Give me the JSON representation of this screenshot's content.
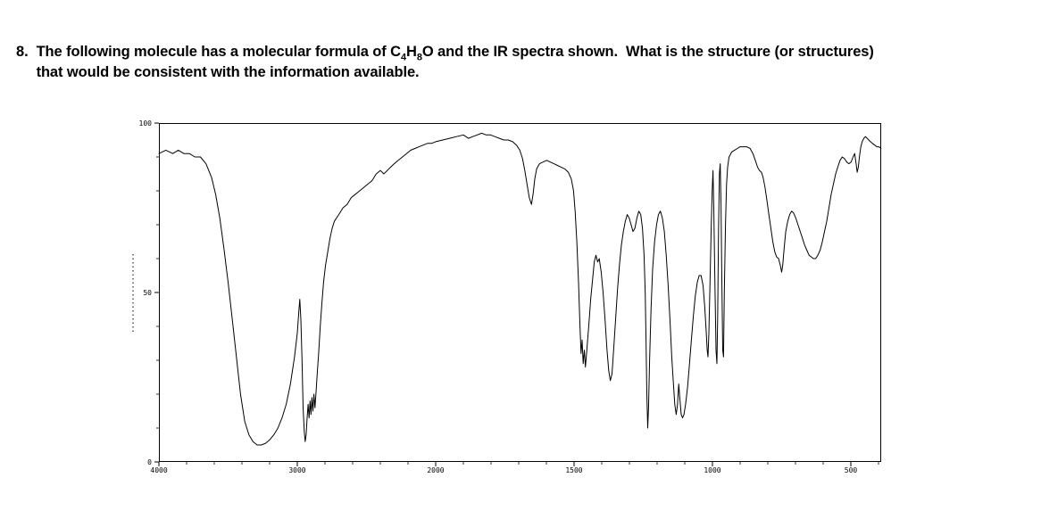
{
  "question": {
    "number": "8.",
    "line1_part1": "The following molecule has a molecular formula of C",
    "formula_sub1": "4",
    "formula_mid": "H",
    "formula_sub2": "8",
    "line1_part2": "O and the IR spectra shown.  What is the structure (or structures)",
    "line2": "that would be consistent with the information available."
  },
  "chart_data": {
    "type": "line",
    "title": "",
    "xlabel": "",
    "ylabel": "",
    "notes": "IR transmittance spectrum; x axis wavenumber 4000 to ~400 cm-1 with scale compression change at 2000 cm-1; y axis percent transmittance 0-100; broad strong band ~3350, C-H bands ~2950-2870, fingerprint bands ~1460, 1370, 1235, 1110, 1000-950, minima near 630",
    "xlim": [
      4000,
      391
    ],
    "ylim": [
      0,
      100
    ],
    "x_scale_change_at": 2000,
    "grid": false,
    "line_color": "#000000",
    "background_color": "#ffffff",
    "x_ticks_major": [
      4000,
      3000,
      2000,
      1500,
      1000,
      500
    ],
    "x_tick_labels": [
      "4000",
      "3000",
      "2000",
      "1500",
      "1000",
      "500"
    ],
    "x_ticks_minor": [
      3800,
      3600,
      3400,
      3200,
      2800,
      2600,
      2400,
      2200,
      1900,
      1800,
      1700,
      1600,
      1400,
      1300,
      1200,
      1100,
      900,
      800,
      700,
      600,
      400
    ],
    "y_ticks_major": [
      100,
      50,
      0
    ],
    "y_tick_labels": [
      "100",
      "50",
      "0"
    ],
    "y_ticks_minor": [
      10,
      20,
      30,
      40,
      60,
      70,
      80,
      90
    ],
    "points": [
      [
        4000,
        91
      ],
      [
        3950,
        92
      ],
      [
        3900,
        91
      ],
      [
        3860,
        92
      ],
      [
        3820,
        91
      ],
      [
        3780,
        91
      ],
      [
        3740,
        90
      ],
      [
        3700,
        90
      ],
      [
        3660,
        88
      ],
      [
        3620,
        84
      ],
      [
        3590,
        79
      ],
      [
        3560,
        72
      ],
      [
        3530,
        63
      ],
      [
        3500,
        53
      ],
      [
        3470,
        42
      ],
      [
        3440,
        31
      ],
      [
        3410,
        20
      ],
      [
        3380,
        12
      ],
      [
        3350,
        8
      ],
      [
        3320,
        6
      ],
      [
        3290,
        5
      ],
      [
        3260,
        5
      ],
      [
        3230,
        5.5
      ],
      [
        3200,
        6.5
      ],
      [
        3170,
        8
      ],
      [
        3140,
        10
      ],
      [
        3110,
        13
      ],
      [
        3080,
        17
      ],
      [
        3050,
        23
      ],
      [
        3020,
        31
      ],
      [
        3000,
        38
      ],
      [
        2990,
        44
      ],
      [
        2982,
        48
      ],
      [
        2974,
        42
      ],
      [
        2966,
        30
      ],
      [
        2958,
        16
      ],
      [
        2950,
        9
      ],
      [
        2943,
        6
      ],
      [
        2936,
        8
      ],
      [
        2929,
        13
      ],
      [
        2922,
        17
      ],
      [
        2915,
        13
      ],
      [
        2908,
        18
      ],
      [
        2901,
        14
      ],
      [
        2894,
        19
      ],
      [
        2887,
        15
      ],
      [
        2880,
        20
      ],
      [
        2872,
        16
      ],
      [
        2864,
        21
      ],
      [
        2856,
        26
      ],
      [
        2846,
        32
      ],
      [
        2834,
        40
      ],
      [
        2822,
        47
      ],
      [
        2810,
        53
      ],
      [
        2796,
        58
      ],
      [
        2780,
        62
      ],
      [
        2764,
        66
      ],
      [
        2748,
        69
      ],
      [
        2732,
        71
      ],
      [
        2716,
        72
      ],
      [
        2700,
        73
      ],
      [
        2670,
        75
      ],
      [
        2640,
        76
      ],
      [
        2610,
        78
      ],
      [
        2580,
        79
      ],
      [
        2550,
        80
      ],
      [
        2520,
        81
      ],
      [
        2490,
        82
      ],
      [
        2460,
        83
      ],
      [
        2430,
        85
      ],
      [
        2400,
        86
      ],
      [
        2375,
        85
      ],
      [
        2350,
        86
      ],
      [
        2325,
        87
      ],
      [
        2300,
        88
      ],
      [
        2270,
        89
      ],
      [
        2240,
        90
      ],
      [
        2210,
        91
      ],
      [
        2180,
        92
      ],
      [
        2150,
        92.5
      ],
      [
        2120,
        93
      ],
      [
        2090,
        93.5
      ],
      [
        2060,
        94
      ],
      [
        2030,
        94
      ],
      [
        2000,
        94.5
      ],
      [
        1975,
        95
      ],
      [
        1950,
        95.5
      ],
      [
        1925,
        96
      ],
      [
        1900,
        96.5
      ],
      [
        1882,
        95.5
      ],
      [
        1866,
        96
      ],
      [
        1850,
        96.5
      ],
      [
        1834,
        97
      ],
      [
        1818,
        96.5
      ],
      [
        1802,
        96.5
      ],
      [
        1786,
        96
      ],
      [
        1770,
        95.5
      ],
      [
        1754,
        95
      ],
      [
        1738,
        95
      ],
      [
        1722,
        94.5
      ],
      [
        1708,
        93.5
      ],
      [
        1696,
        92
      ],
      [
        1686,
        89.5
      ],
      [
        1678,
        86
      ],
      [
        1670,
        82
      ],
      [
        1662,
        78
      ],
      [
        1654,
        76
      ],
      [
        1648,
        79
      ],
      [
        1642,
        83.5
      ],
      [
        1635,
        86.5
      ],
      [
        1625,
        88
      ],
      [
        1612,
        88.5
      ],
      [
        1599,
        89
      ],
      [
        1586,
        88.5
      ],
      [
        1573,
        88
      ],
      [
        1560,
        87.5
      ],
      [
        1547,
        87
      ],
      [
        1534,
        86.5
      ],
      [
        1521,
        85.5
      ],
      [
        1510,
        83.5
      ],
      [
        1502,
        80
      ],
      [
        1496,
        74
      ],
      [
        1490,
        65
      ],
      [
        1484,
        53
      ],
      [
        1479,
        41
      ],
      [
        1475,
        32
      ],
      [
        1471,
        36
      ],
      [
        1467,
        29
      ],
      [
        1463,
        33
      ],
      [
        1459,
        28
      ],
      [
        1455,
        32
      ],
      [
        1451,
        36
      ],
      [
        1446,
        41
      ],
      [
        1440,
        48
      ],
      [
        1433,
        54
      ],
      [
        1427,
        59
      ],
      [
        1421,
        61
      ],
      [
        1415,
        59
      ],
      [
        1409,
        60
      ],
      [
        1402,
        56
      ],
      [
        1395,
        50
      ],
      [
        1388,
        42
      ],
      [
        1381,
        33
      ],
      [
        1375,
        27
      ],
      [
        1369,
        24
      ],
      [
        1363,
        26
      ],
      [
        1357,
        33
      ],
      [
        1350,
        42
      ],
      [
        1343,
        51
      ],
      [
        1336,
        58
      ],
      [
        1329,
        64
      ],
      [
        1322,
        68
      ],
      [
        1315,
        71
      ],
      [
        1308,
        73
      ],
      [
        1301,
        72
      ],
      [
        1294,
        70
      ],
      [
        1287,
        68
      ],
      [
        1280,
        69
      ],
      [
        1273,
        72
      ],
      [
        1266,
        74
      ],
      [
        1259,
        73
      ],
      [
        1253,
        69
      ],
      [
        1247,
        61
      ],
      [
        1243,
        50
      ],
      [
        1240,
        36
      ],
      [
        1237,
        20
      ],
      [
        1234,
        10
      ],
      [
        1231,
        16
      ],
      [
        1227,
        30
      ],
      [
        1222,
        45
      ],
      [
        1216,
        57
      ],
      [
        1209,
        65
      ],
      [
        1202,
        70
      ],
      [
        1195,
        73
      ],
      [
        1188,
        74
      ],
      [
        1181,
        72
      ],
      [
        1174,
        68
      ],
      [
        1167,
        61
      ],
      [
        1160,
        52
      ],
      [
        1153,
        41
      ],
      [
        1147,
        31
      ],
      [
        1141,
        23
      ],
      [
        1136,
        17
      ],
      [
        1131,
        14
      ],
      [
        1126,
        17
      ],
      [
        1122,
        23
      ],
      [
        1118,
        19
      ],
      [
        1113,
        14
      ],
      [
        1108,
        13
      ],
      [
        1103,
        14
      ],
      [
        1097,
        17
      ],
      [
        1090,
        22
      ],
      [
        1083,
        29
      ],
      [
        1076,
        36
      ],
      [
        1069,
        43
      ],
      [
        1062,
        49
      ],
      [
        1055,
        53
      ],
      [
        1048,
        55
      ],
      [
        1041,
        55
      ],
      [
        1034,
        52
      ],
      [
        1028,
        46
      ],
      [
        1023,
        39
      ],
      [
        1019,
        33
      ],
      [
        1016,
        31
      ],
      [
        1013,
        38
      ],
      [
        1009,
        52
      ],
      [
        1005,
        68
      ],
      [
        1001,
        80
      ],
      [
        998,
        86
      ],
      [
        995,
        75
      ],
      [
        991,
        52
      ],
      [
        987,
        33
      ],
      [
        984,
        29
      ],
      [
        981,
        44
      ],
      [
        978,
        68
      ],
      [
        975,
        85
      ],
      [
        972,
        88
      ],
      [
        969,
        76
      ],
      [
        966,
        54
      ],
      [
        963,
        33
      ],
      [
        960,
        31
      ],
      [
        957,
        50
      ],
      [
        953,
        70
      ],
      [
        949,
        82
      ],
      [
        945,
        87
      ],
      [
        940,
        90
      ],
      [
        930,
        91.5
      ],
      [
        920,
        92
      ],
      [
        910,
        92.5
      ],
      [
        900,
        93
      ],
      [
        888,
        93
      ],
      [
        876,
        93
      ],
      [
        864,
        92.5
      ],
      [
        854,
        91
      ],
      [
        845,
        89
      ],
      [
        837,
        87
      ],
      [
        830,
        86
      ],
      [
        823,
        85.5
      ],
      [
        817,
        84
      ],
      [
        810,
        81
      ],
      [
        803,
        77
      ],
      [
        796,
        73
      ],
      [
        789,
        69
      ],
      [
        782,
        65
      ],
      [
        775,
        62
      ],
      [
        768,
        60.5
      ],
      [
        761,
        60
      ],
      [
        755,
        58
      ],
      [
        750,
        56
      ],
      [
        746,
        58
      ],
      [
        741,
        63
      ],
      [
        735,
        68
      ],
      [
        728,
        71
      ],
      [
        721,
        73
      ],
      [
        714,
        74
      ],
      [
        707,
        73.5
      ],
      [
        699,
        72
      ],
      [
        691,
        70
      ],
      [
        683,
        68
      ],
      [
        675,
        66
      ],
      [
        667,
        64
      ],
      [
        659,
        62.5
      ],
      [
        651,
        61
      ],
      [
        643,
        60.5
      ],
      [
        635,
        60
      ],
      [
        627,
        60
      ],
      [
        619,
        61
      ],
      [
        611,
        62.5
      ],
      [
        603,
        65
      ],
      [
        595,
        68
      ],
      [
        587,
        71
      ],
      [
        579,
        75
      ],
      [
        571,
        79
      ],
      [
        563,
        82
      ],
      [
        555,
        85
      ],
      [
        547,
        87
      ],
      [
        539,
        89
      ],
      [
        531,
        90
      ],
      [
        523,
        89.5
      ],
      [
        515,
        88.5
      ],
      [
        507,
        88
      ],
      [
        499,
        88.5
      ],
      [
        492,
        90
      ],
      [
        486,
        91
      ],
      [
        481,
        88
      ],
      [
        477,
        85.5
      ],
      [
        473,
        87
      ],
      [
        469,
        90
      ],
      [
        464,
        93
      ],
      [
        459,
        94.5
      ],
      [
        453,
        95.5
      ],
      [
        447,
        96
      ],
      [
        441,
        95.5
      ],
      [
        435,
        95
      ],
      [
        429,
        94.5
      ],
      [
        422,
        94
      ],
      [
        414,
        93.5
      ],
      [
        406,
        93
      ],
      [
        398,
        93
      ],
      [
        391,
        92.5
      ]
    ]
  }
}
